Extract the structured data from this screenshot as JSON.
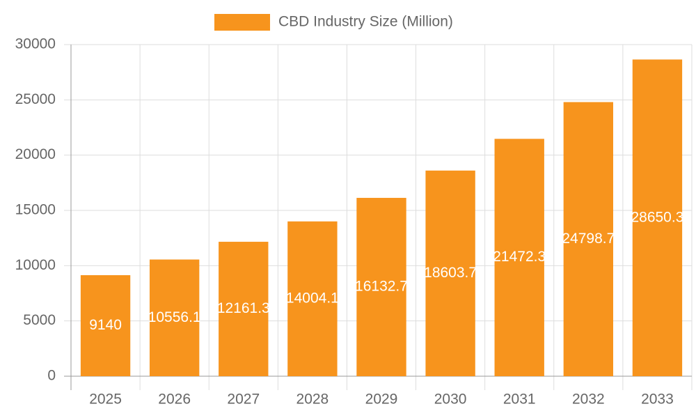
{
  "chart_data": {
    "type": "bar",
    "legend": "CBD Industry Size (Million)",
    "categories": [
      "2025",
      "2026",
      "2027",
      "2028",
      "2029",
      "2030",
      "2031",
      "2032",
      "2033"
    ],
    "values": [
      9140,
      10556.1,
      12161.3,
      14004.1,
      16132.7,
      18603.7,
      21472.3,
      24798.7,
      28650.3
    ],
    "color": "#f7941d",
    "ylim": [
      0,
      30000
    ],
    "yticks": [
      0,
      5000,
      10000,
      15000,
      20000,
      25000,
      30000
    ],
    "grid": true,
    "legend_position": "top"
  }
}
